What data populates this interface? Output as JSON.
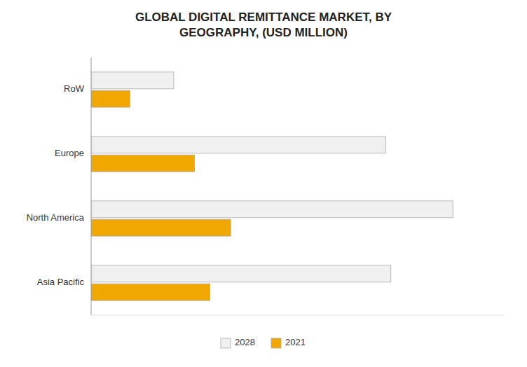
{
  "chart_data": {
    "type": "bar",
    "orientation": "horizontal",
    "title": "GLOBAL DIGITAL REMITTANCE MARKET, BY\nGEOGRAPHY, (USD MILLION)",
    "categories": [
      "Asia Pacific",
      "North America",
      "Europe",
      "RoW"
    ],
    "series": [
      {
        "name": "2028",
        "color": "#f0f0f0",
        "values": [
          5800,
          7000,
          5700,
          1600
        ]
      },
      {
        "name": "2021",
        "color": "#f0a800",
        "values": [
          2300,
          2700,
          2000,
          750
        ]
      }
    ],
    "xlim": [
      0,
      8000
    ],
    "grid": false,
    "legend": "bottom",
    "tick_labels": "y"
  }
}
